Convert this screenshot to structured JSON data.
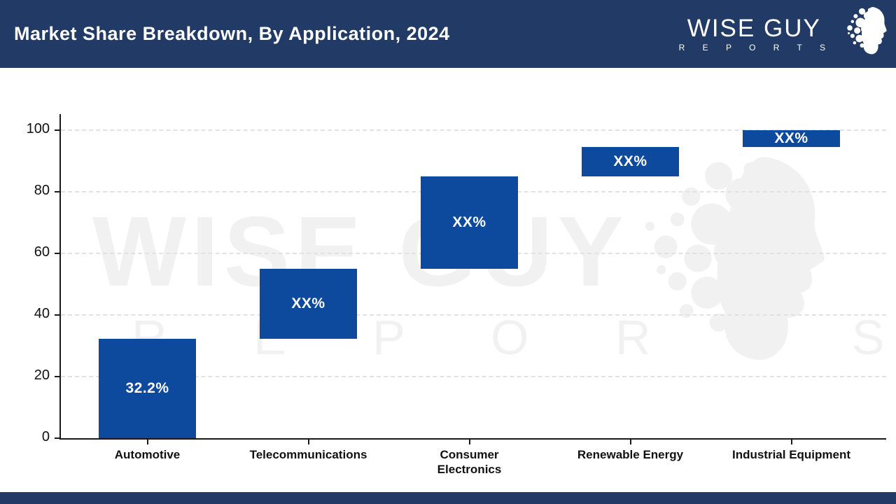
{
  "header": {
    "title": "Market Share Breakdown, By Application, 2024",
    "logo": {
      "line1": "WISE GUY",
      "line2": "R E P O R T S"
    }
  },
  "watermark": {
    "line1": "WISE GUY",
    "line2": "R E P O R T S"
  },
  "chart_data": {
    "type": "bar",
    "subtype": "waterfall",
    "title": "Market Share Breakdown, By Application, 2024",
    "categories": [
      "Automotive",
      "Telecommunications",
      "Consumer Electronics",
      "Renewable Energy",
      "Industrial Equipment"
    ],
    "segments": [
      {
        "category": "Automotive",
        "start": 0,
        "end": 32.2,
        "label": "32.2%"
      },
      {
        "category": "Telecommunications",
        "start": 32.2,
        "end": 55,
        "label": "XX%"
      },
      {
        "category": "Consumer Electronics",
        "start": 55,
        "end": 85,
        "label": "XX%"
      },
      {
        "category": "Renewable Energy",
        "start": 85,
        "end": 94.5,
        "label": "XX%"
      },
      {
        "category": "Industrial Equipment",
        "start": 94.5,
        "end": 100,
        "label": "XX%"
      }
    ],
    "yticks": [
      0,
      20,
      40,
      60,
      80,
      100
    ],
    "ylim": [
      0,
      105
    ],
    "xlabel": "",
    "ylabel": "",
    "grid": "horizontal-dashed",
    "legend": "none",
    "bar_color": "#0d4a9e",
    "bar_label_color": "#ffffff"
  },
  "colors": {
    "header_bg": "#213a66",
    "footer_bg": "#213a66",
    "bar": "#0d4a9e",
    "watermark": "#f1f1f1",
    "grid": "#e2e2e2",
    "axis": "#1a1a1a"
  }
}
